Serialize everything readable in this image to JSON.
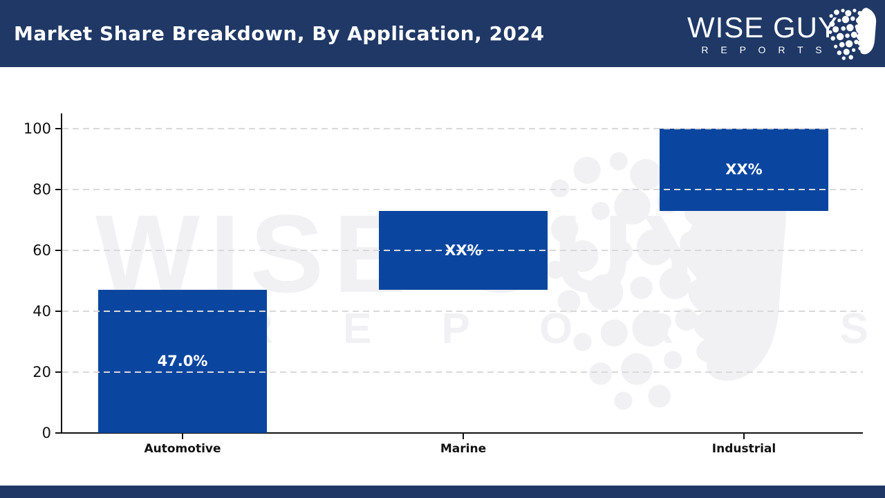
{
  "header": {
    "title": "Market Share Breakdown, By Application, 2024",
    "logo": {
      "name": "WISE GUY",
      "tagline": "R E P O R T S"
    }
  },
  "watermark": {
    "name": "WISE GUY",
    "tagline": "R E P O R T S"
  },
  "footer": {},
  "chart_data": {
    "type": "bar",
    "subtype": "waterfall",
    "title": "Market Share Breakdown, By Application, 2024",
    "categories": [
      "Automotive",
      "Marine",
      "Industrial"
    ],
    "segments": [
      {
        "category": "Automotive",
        "start": 0,
        "end": 47,
        "label": "47.0%"
      },
      {
        "category": "Marine",
        "start": 47,
        "end": 73,
        "label": "XX%"
      },
      {
        "category": "Industrial",
        "start": 73,
        "end": 100,
        "label": "XX%"
      }
    ],
    "yticks": [
      0,
      20,
      40,
      60,
      80,
      100
    ],
    "ylim": [
      0,
      105
    ],
    "xlabel": "",
    "ylabel": "",
    "grid": "horizontal-dashed-over-bars",
    "legend": "none",
    "bar_color": "#0a46a0",
    "bar_label_color": "#ffffff",
    "grid_color": "#d9d9d9",
    "axis_color": "#111111",
    "header_color": "#1f3866",
    "watermark_color": "#f1f1f4"
  }
}
